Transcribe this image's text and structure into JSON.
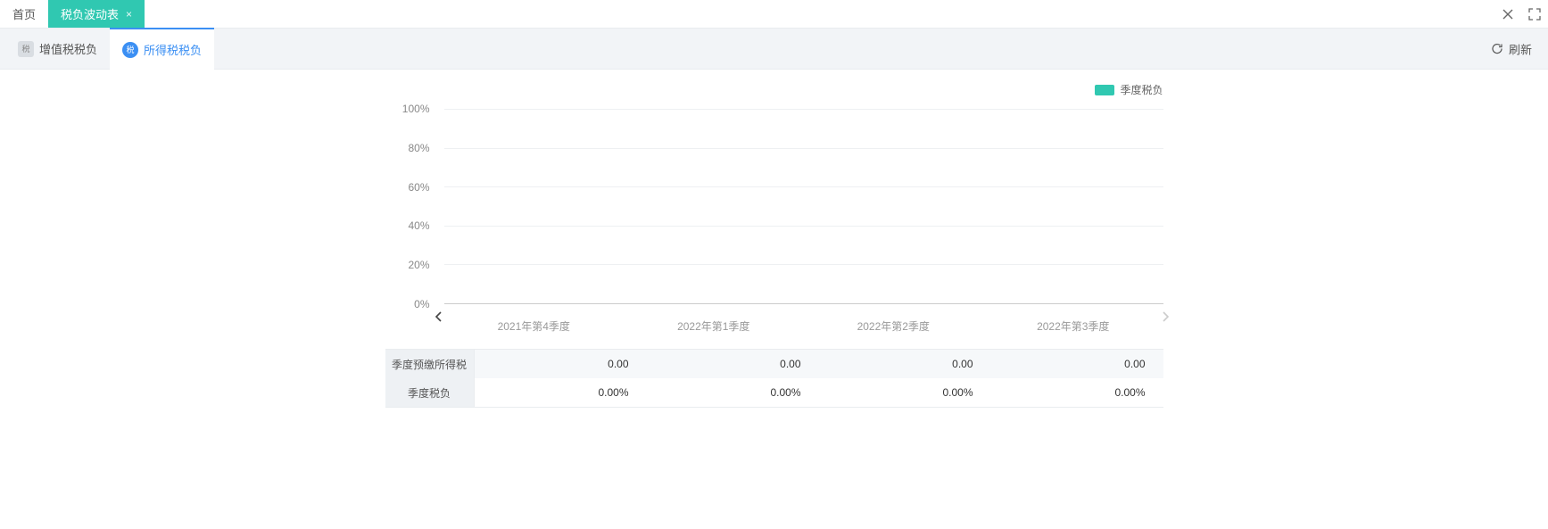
{
  "topTabs": {
    "home": "首页",
    "active": "税负波动表"
  },
  "subTabs": {
    "vat": "增值税税负",
    "income": "所得税税负"
  },
  "refresh_label": "刷新",
  "chart": {
    "type": "bar",
    "legend_label": "季度税负",
    "legend_color": "#30c8b1",
    "background_color": "#ffffff",
    "grid_color": "#eef0f2",
    "axis_color": "#cccccc",
    "label_color": "#888888",
    "label_fontsize": 12,
    "ylim": [
      0,
      100
    ],
    "ytick_step": 20,
    "y_ticks": [
      "0%",
      "20%",
      "40%",
      "60%",
      "80%",
      "100%"
    ],
    "x_categories": [
      "2021年第4季度",
      "2022年第1季度",
      "2022年第2季度",
      "2022年第3季度"
    ],
    "values": [
      0,
      0,
      0,
      0
    ]
  },
  "table": {
    "row1_label": "季度预缴所得税",
    "row1_cells": [
      "0.00",
      "0.00",
      "0.00",
      "0.00"
    ],
    "row2_label": "季度税负",
    "row2_cells": [
      "0.00%",
      "0.00%",
      "0.00%",
      "0.00%"
    ]
  }
}
